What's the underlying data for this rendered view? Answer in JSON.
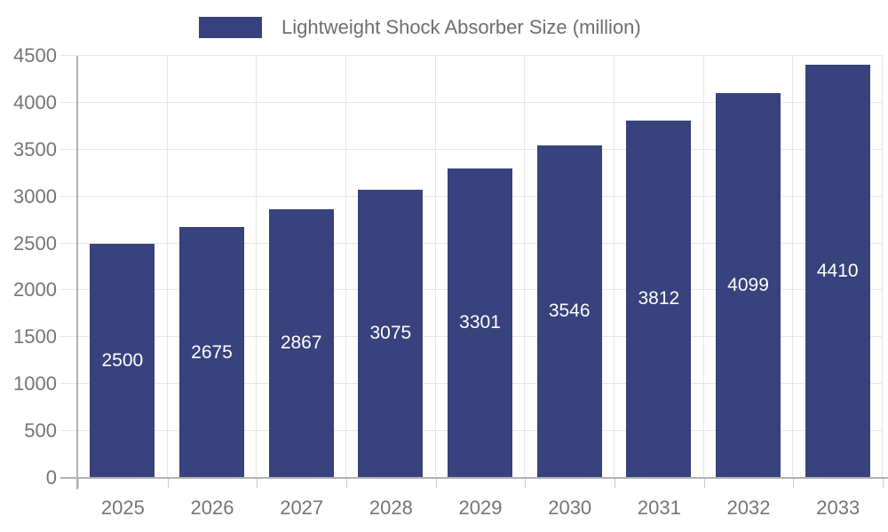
{
  "legend": {
    "label": "Lightweight Shock Absorber Size (million)"
  },
  "colors": {
    "bar": "#38427D",
    "legend_text": "#6e6e6e",
    "axis_label": "#757575",
    "grid": "#e6e6e6",
    "axis_line": "#b2b2b2",
    "value_label": "#ffffff",
    "background": "#ffffff"
  },
  "chart_data": {
    "type": "bar",
    "title": "Lightweight Shock Absorber Size (million)",
    "categories": [
      "2025",
      "2026",
      "2027",
      "2028",
      "2029",
      "2030",
      "2031",
      "2032",
      "2033"
    ],
    "values": [
      2500,
      2675,
      2867,
      3075,
      3301,
      3546,
      3812,
      4099,
      4410
    ],
    "series_name": "Lightweight Shock Absorber Size (million)",
    "xlabel": "",
    "ylabel": "",
    "ylim": [
      0,
      4500
    ],
    "yticks": [
      0,
      500,
      1000,
      1500,
      2000,
      2500,
      3000,
      3500,
      4000,
      4500
    ],
    "grid": true,
    "legend_position": "top",
    "value_label_position": "inside-center"
  }
}
